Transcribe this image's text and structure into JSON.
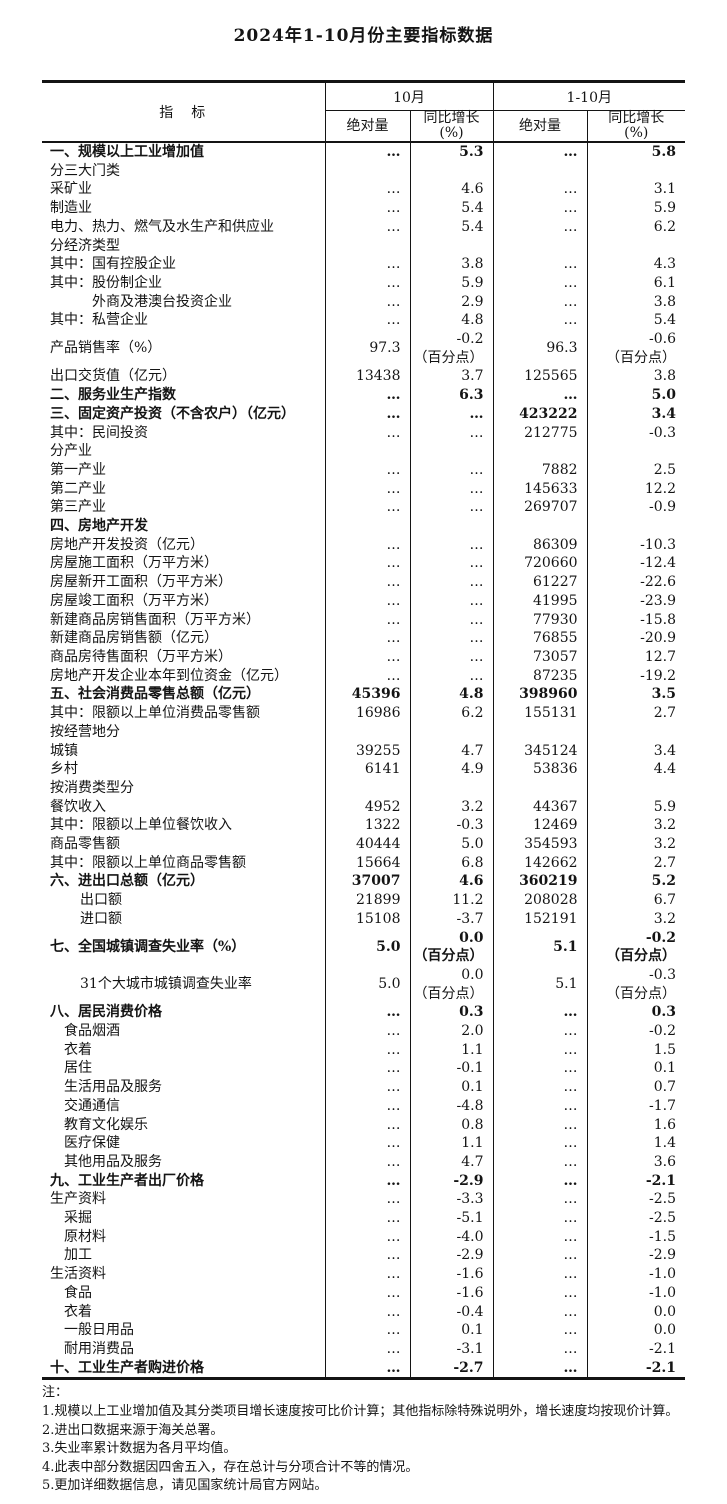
{
  "title": "2024年1-10月份主要指标数据",
  "colors": {
    "ink": "#141414",
    "background": "#ffffff"
  },
  "table": {
    "header": {
      "indicator": "指　标",
      "oct": "10月",
      "jan_oct": "1-10月",
      "abs": "绝对量",
      "yoy": "同比增长",
      "yoy_unit": "(%)"
    },
    "rows": [
      {
        "label": "一、规模以上工业增加值",
        "bold": true,
        "oct_abs": "…",
        "oct_yoy": "5.3",
        "cum_abs": "…",
        "cum_yoy": "5.8"
      },
      {
        "label": "分三大门类"
      },
      {
        "label": "采矿业",
        "oct_abs": "…",
        "oct_yoy": "4.6",
        "cum_abs": "…",
        "cum_yoy": "3.1"
      },
      {
        "label": "制造业",
        "oct_abs": "…",
        "oct_yoy": "5.4",
        "cum_abs": "…",
        "cum_yoy": "5.9"
      },
      {
        "label": "电力、热力、燃气及水生产和供应业",
        "oct_abs": "…",
        "oct_yoy": "5.4",
        "cum_abs": "…",
        "cum_yoy": "6.2"
      },
      {
        "label": "分经济类型"
      },
      {
        "label": "其中：国有控股企业",
        "oct_abs": "…",
        "oct_yoy": "3.8",
        "cum_abs": "…",
        "cum_yoy": "4.3"
      },
      {
        "label": "其中：股份制企业",
        "oct_abs": "…",
        "oct_yoy": "5.9",
        "cum_abs": "…",
        "cum_yoy": "6.1"
      },
      {
        "label": "外商及港澳台投资企业",
        "indent": 3,
        "oct_abs": "…",
        "oct_yoy": "2.9",
        "cum_abs": "…",
        "cum_yoy": "3.8"
      },
      {
        "label": "其中：私营企业",
        "oct_abs": "…",
        "oct_yoy": "4.8",
        "cum_abs": "…",
        "cum_yoy": "5.4"
      },
      {
        "label": "产品销售率（%）",
        "oct_abs": "97.3",
        "oct_yoy": "-0.2",
        "oct_yoy_unit": "（百分点）",
        "cum_abs": "96.3",
        "cum_yoy": "-0.6",
        "cum_yoy_unit": "（百分点）"
      },
      {
        "label": "出口交货值（亿元）",
        "oct_abs": "13438",
        "oct_yoy": "3.7",
        "cum_abs": "125565",
        "cum_yoy": "3.8"
      },
      {
        "label": "二、服务业生产指数",
        "bold": true,
        "oct_abs": "…",
        "oct_yoy": "6.3",
        "cum_abs": "…",
        "cum_yoy": "5.0"
      },
      {
        "label": "三、固定资产投资（不含农户）（亿元）",
        "bold": true,
        "oct_abs": "…",
        "oct_yoy": "…",
        "cum_abs": "423222",
        "cum_yoy": "3.4"
      },
      {
        "label": "其中：民间投资",
        "oct_abs": "…",
        "oct_yoy": "…",
        "cum_abs": "212775",
        "cum_yoy": "-0.3"
      },
      {
        "label": "分产业"
      },
      {
        "label": "第一产业",
        "oct_abs": "…",
        "oct_yoy": "…",
        "cum_abs": "7882",
        "cum_yoy": "2.5"
      },
      {
        "label": "第二产业",
        "oct_abs": "…",
        "oct_yoy": "…",
        "cum_abs": "145633",
        "cum_yoy": "12.2"
      },
      {
        "label": "第三产业",
        "oct_abs": "…",
        "oct_yoy": "…",
        "cum_abs": "269707",
        "cum_yoy": "-0.9"
      },
      {
        "label": "四、房地产开发",
        "bold": true
      },
      {
        "label": "房地产开发投资（亿元）",
        "oct_abs": "…",
        "oct_yoy": "…",
        "cum_abs": "86309",
        "cum_yoy": "-10.3"
      },
      {
        "label": "房屋施工面积（万平方米）",
        "oct_abs": "…",
        "oct_yoy": "…",
        "cum_abs": "720660",
        "cum_yoy": "-12.4"
      },
      {
        "label": "房屋新开工面积（万平方米）",
        "oct_abs": "…",
        "oct_yoy": "…",
        "cum_abs": "61227",
        "cum_yoy": "-22.6"
      },
      {
        "label": "房屋竣工面积（万平方米）",
        "oct_abs": "…",
        "oct_yoy": "…",
        "cum_abs": "41995",
        "cum_yoy": "-23.9"
      },
      {
        "label": "新建商品房销售面积（万平方米）",
        "oct_abs": "…",
        "oct_yoy": "…",
        "cum_abs": "77930",
        "cum_yoy": "-15.8"
      },
      {
        "label": "新建商品房销售额（亿元）",
        "oct_abs": "…",
        "oct_yoy": "…",
        "cum_abs": "76855",
        "cum_yoy": "-20.9"
      },
      {
        "label": "商品房待售面积（万平方米）",
        "oct_abs": "…",
        "oct_yoy": "…",
        "cum_abs": "73057",
        "cum_yoy": "12.7"
      },
      {
        "label": "房地产开发企业本年到位资金（亿元）",
        "oct_abs": "…",
        "oct_yoy": "…",
        "cum_abs": "87235",
        "cum_yoy": "-19.2"
      },
      {
        "label": "五、社会消费品零售总额（亿元）",
        "bold": true,
        "oct_abs": "45396",
        "oct_yoy": "4.8",
        "cum_abs": "398960",
        "cum_yoy": "3.5"
      },
      {
        "label": "其中：限额以上单位消费品零售额",
        "oct_abs": "16986",
        "oct_yoy": "6.2",
        "cum_abs": "155131",
        "cum_yoy": "2.7"
      },
      {
        "label": "按经营地分"
      },
      {
        "label": "城镇",
        "oct_abs": "39255",
        "oct_yoy": "4.7",
        "cum_abs": "345124",
        "cum_yoy": "3.4"
      },
      {
        "label": "乡村",
        "oct_abs": "6141",
        "oct_yoy": "4.9",
        "cum_abs": "53836",
        "cum_yoy": "4.4"
      },
      {
        "label": "按消费类型分"
      },
      {
        "label": "餐饮收入",
        "oct_abs": "4952",
        "oct_yoy": "3.2",
        "cum_abs": "44367",
        "cum_yoy": "5.9"
      },
      {
        "label": "其中：限额以上单位餐饮收入",
        "oct_abs": "1322",
        "oct_yoy": "-0.3",
        "cum_abs": "12469",
        "cum_yoy": "3.2"
      },
      {
        "label": "商品零售额",
        "oct_abs": "40444",
        "oct_yoy": "5.0",
        "cum_abs": "354593",
        "cum_yoy": "3.2"
      },
      {
        "label": "其中：限额以上单位商品零售额",
        "oct_abs": "15664",
        "oct_yoy": "6.8",
        "cum_abs": "142662",
        "cum_yoy": "2.7"
      },
      {
        "label": "六、进出口总额（亿元）",
        "bold": true,
        "oct_abs": "37007",
        "oct_yoy": "4.6",
        "cum_abs": "360219",
        "cum_yoy": "5.2"
      },
      {
        "label": "出口额",
        "indent": 2,
        "oct_abs": "21899",
        "oct_yoy": "11.2",
        "cum_abs": "208028",
        "cum_yoy": "6.7"
      },
      {
        "label": "进口额",
        "indent": 2,
        "oct_abs": "15108",
        "oct_yoy": "-3.7",
        "cum_abs": "152191",
        "cum_yoy": "3.2"
      },
      {
        "label": "七、全国城镇调查失业率（%）",
        "bold": true,
        "oct_abs": "5.0",
        "oct_yoy": "0.0",
        "oct_yoy_unit": "（百分点）",
        "cum_abs": "5.1",
        "cum_yoy": "-0.2",
        "cum_yoy_unit": "（百分点）"
      },
      {
        "label": "31个大城市城镇调查失业率",
        "indent": 2,
        "oct_abs": "5.0",
        "oct_yoy": "0.0",
        "oct_yoy_unit": "（百分点）",
        "cum_abs": "5.1",
        "cum_yoy": "-0.3",
        "cum_yoy_unit": "（百分点）"
      },
      {
        "label": "八、居民消费价格",
        "bold": true,
        "oct_abs": "…",
        "oct_yoy": "0.3",
        "cum_abs": "…",
        "cum_yoy": "0.3"
      },
      {
        "label": "食品烟酒",
        "indent": 1,
        "oct_abs": "…",
        "oct_yoy": "2.0",
        "cum_abs": "…",
        "cum_yoy": "-0.2"
      },
      {
        "label": "衣着",
        "indent": 1,
        "oct_abs": "…",
        "oct_yoy": "1.1",
        "cum_abs": "…",
        "cum_yoy": "1.5"
      },
      {
        "label": "居住",
        "indent": 1,
        "oct_abs": "…",
        "oct_yoy": "-0.1",
        "cum_abs": "…",
        "cum_yoy": "0.1"
      },
      {
        "label": "生活用品及服务",
        "indent": 1,
        "oct_abs": "…",
        "oct_yoy": "0.1",
        "cum_abs": "…",
        "cum_yoy": "0.7"
      },
      {
        "label": "交通通信",
        "indent": 1,
        "oct_abs": "…",
        "oct_yoy": "-4.8",
        "cum_abs": "…",
        "cum_yoy": "-1.7"
      },
      {
        "label": "教育文化娱乐",
        "indent": 1,
        "oct_abs": "…",
        "oct_yoy": "0.8",
        "cum_abs": "…",
        "cum_yoy": "1.6"
      },
      {
        "label": "医疗保健",
        "indent": 1,
        "oct_abs": "…",
        "oct_yoy": "1.1",
        "cum_abs": "…",
        "cum_yoy": "1.4"
      },
      {
        "label": "其他用品及服务",
        "indent": 1,
        "oct_abs": "…",
        "oct_yoy": "4.7",
        "cum_abs": "…",
        "cum_yoy": "3.6"
      },
      {
        "label": "九、工业生产者出厂价格",
        "bold": true,
        "oct_abs": "…",
        "oct_yoy": "-2.9",
        "cum_abs": "…",
        "cum_yoy": "-2.1"
      },
      {
        "label": "生产资料",
        "oct_abs": "…",
        "oct_yoy": "-3.3",
        "cum_abs": "…",
        "cum_yoy": "-2.5"
      },
      {
        "label": "采掘",
        "indent": 1,
        "oct_abs": "…",
        "oct_yoy": "-5.1",
        "cum_abs": "…",
        "cum_yoy": "-2.5"
      },
      {
        "label": "原材料",
        "indent": 1,
        "oct_abs": "…",
        "oct_yoy": "-4.0",
        "cum_abs": "…",
        "cum_yoy": "-1.5"
      },
      {
        "label": "加工",
        "indent": 1,
        "oct_abs": "…",
        "oct_yoy": "-2.9",
        "cum_abs": "…",
        "cum_yoy": "-2.9"
      },
      {
        "label": "生活资料",
        "oct_abs": "…",
        "oct_yoy": "-1.6",
        "cum_abs": "…",
        "cum_yoy": "-1.0"
      },
      {
        "label": "食品",
        "indent": 1,
        "oct_abs": "…",
        "oct_yoy": "-1.6",
        "cum_abs": "…",
        "cum_yoy": "-1.0"
      },
      {
        "label": "衣着",
        "indent": 1,
        "oct_abs": "…",
        "oct_yoy": "-0.4",
        "cum_abs": "…",
        "cum_yoy": "0.0"
      },
      {
        "label": "一般日用品",
        "indent": 1,
        "oct_abs": "…",
        "oct_yoy": "0.1",
        "cum_abs": "…",
        "cum_yoy": "0.0"
      },
      {
        "label": "耐用消费品",
        "indent": 1,
        "oct_abs": "…",
        "oct_yoy": "-3.1",
        "cum_abs": "…",
        "cum_yoy": "-2.1"
      },
      {
        "label": "十、工业生产者购进价格",
        "bold": true,
        "oct_abs": "…",
        "oct_yoy": "-2.7",
        "cum_abs": "…",
        "cum_yoy": "-2.1"
      }
    ]
  },
  "notes": {
    "heading": "注：",
    "items": [
      "1.规模以上工业增加值及其分类项目增长速度按可比价计算；其他指标除特殊说明外，增长速度均按现价计算。",
      "2.进出口数据来源于海关总署。",
      "3.失业率累计数据为各月平均值。",
      "4.此表中部分数据因四舍五入，存在总计与分项合计不等的情况。",
      "5.更加详细数据信息，请见国家统计局官方网站。"
    ]
  }
}
